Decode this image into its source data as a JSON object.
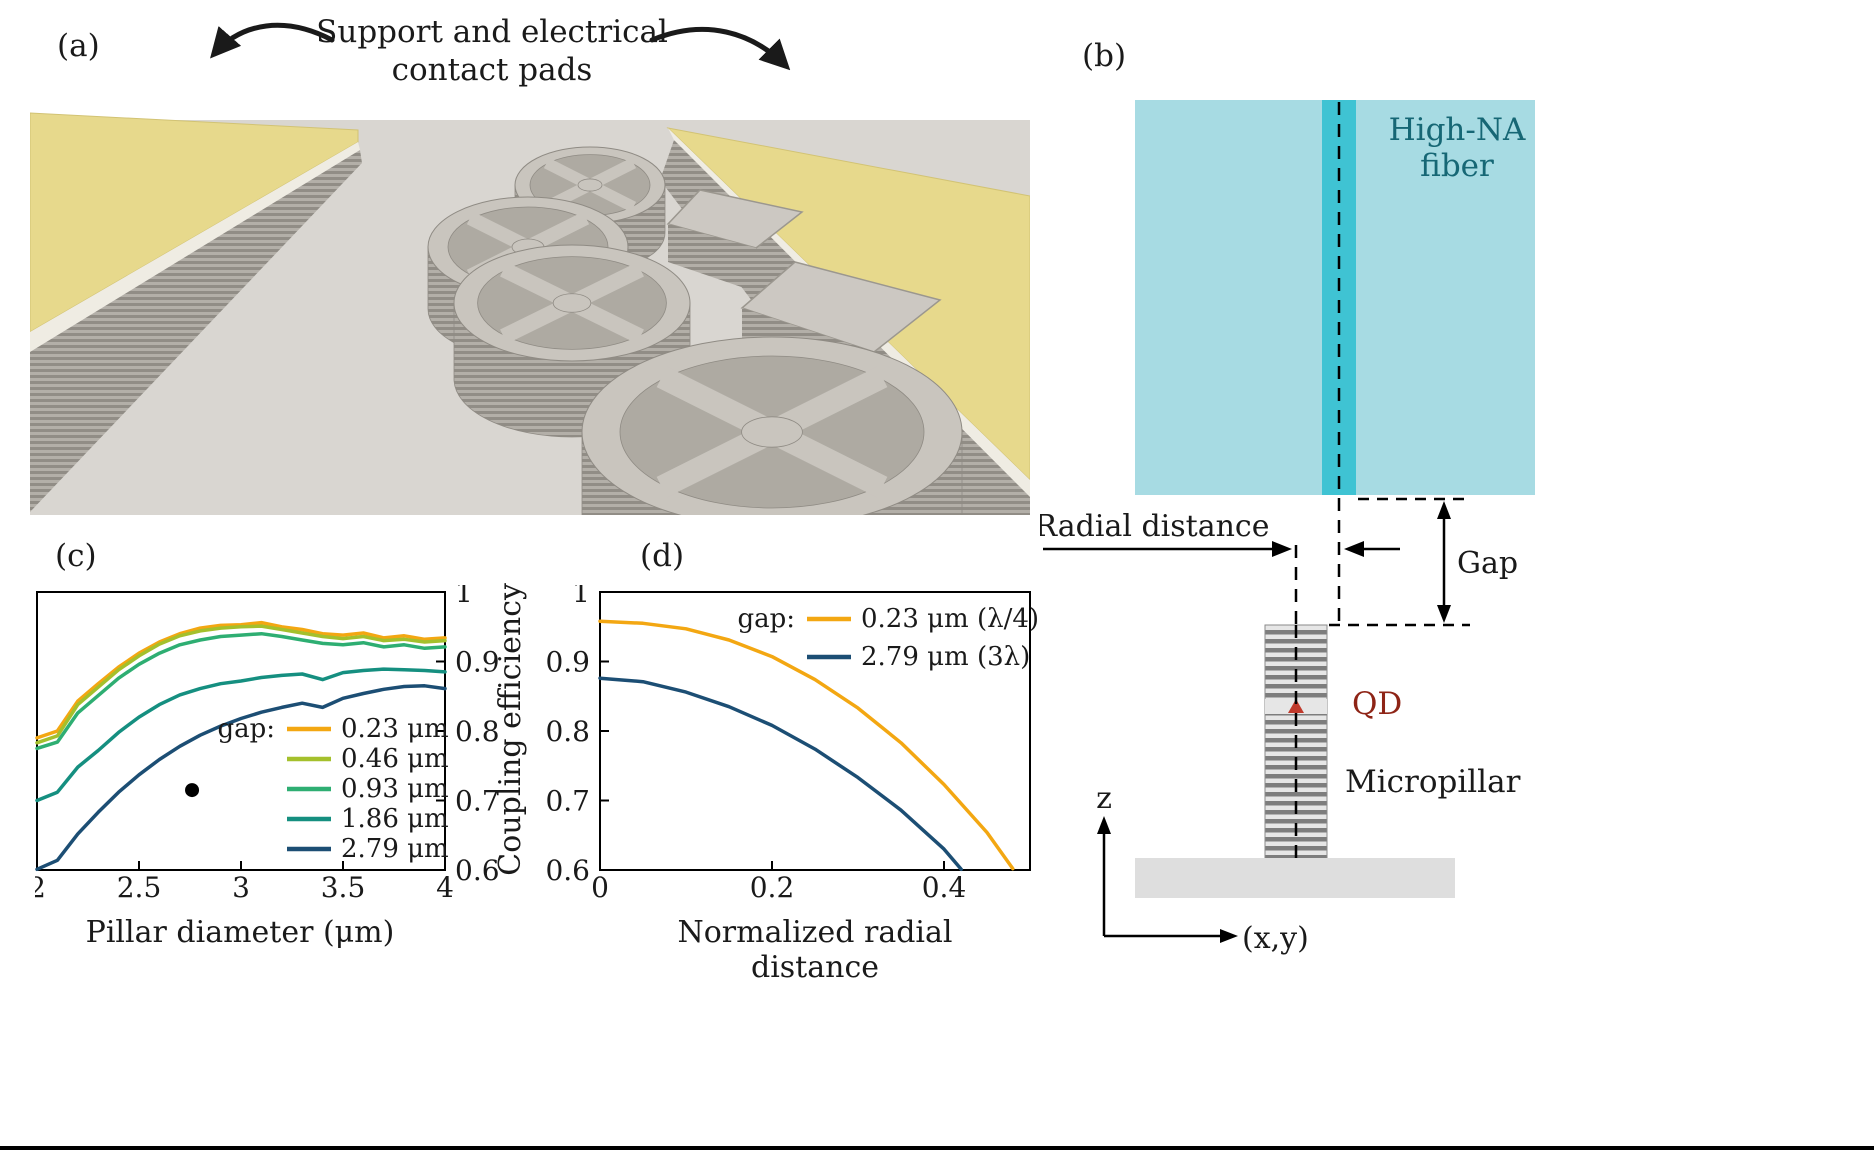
{
  "panels": {
    "a": {
      "label": "(a)",
      "caption_lines": [
        "Support and electrical",
        "contact pads"
      ],
      "colors": {
        "pad_yellow": "#e7d98c",
        "structure_gray": "#c9c5be",
        "floor_gray": "#d9d6d1"
      }
    },
    "b": {
      "label": "(b)",
      "fiber_label_lines": [
        "High-NA",
        "fiber"
      ],
      "radial_distance_label": "Radial distance",
      "gap_label": "Gap",
      "qd_label": "QD",
      "micropillar_label": "Micropillar",
      "axis_z_label": "z",
      "axis_xy_label": "(x,y)",
      "colors": {
        "fiber_cladding": "#a7dbe3",
        "fiber_core": "#3fc3d3",
        "fiber_text": "#166775",
        "qd_red": "#c0392b",
        "qd_text": "#8e2416",
        "substrate_gray": "#dedede"
      }
    },
    "c": {
      "label": "(c)"
    },
    "d": {
      "label": "(d)"
    }
  },
  "chart_data": [
    {
      "panel": "c",
      "type": "line",
      "title": "",
      "xlabel": "Pillar diameter (μm)",
      "ylabel": "Coupling efficiency",
      "xlim": [
        2,
        4
      ],
      "ylim": [
        0.6,
        1
      ],
      "xticks": [
        2,
        2.5,
        3,
        3.5,
        4
      ],
      "xtick_labels": [
        "2",
        "2.5",
        "3",
        "3.5",
        "4"
      ],
      "yticks": [
        1,
        0.9,
        0.8,
        0.7,
        0.6
      ],
      "ytick_labels": [
        "1",
        "0.9",
        "0.8",
        "0.7",
        "0.6"
      ],
      "legend_title": "gap:",
      "legend_position": "inside-right-bottom",
      "grid": false,
      "marker": {
        "x": 2.76,
        "y": 0.715,
        "color": "#000000"
      },
      "series": [
        {
          "name": "0.23 μm",
          "color": "#f3a712",
          "x": [
            2.0,
            2.1,
            2.2,
            2.3,
            2.4,
            2.5,
            2.6,
            2.7,
            2.8,
            2.9,
            3.0,
            3.1,
            3.2,
            3.3,
            3.4,
            3.5,
            3.6,
            3.7,
            3.8,
            3.9,
            4.0
          ],
          "y": [
            0.79,
            0.8,
            0.843,
            0.868,
            0.892,
            0.912,
            0.928,
            0.94,
            0.948,
            0.952,
            0.953,
            0.956,
            0.95,
            0.946,
            0.94,
            0.938,
            0.941,
            0.934,
            0.937,
            0.932,
            0.934
          ]
        },
        {
          "name": "0.46 μm",
          "color": "#a4c02c",
          "x": [
            2.0,
            2.1,
            2.2,
            2.3,
            2.4,
            2.5,
            2.6,
            2.7,
            2.8,
            2.9,
            3.0,
            3.1,
            3.2,
            3.3,
            3.4,
            3.5,
            3.6,
            3.7,
            3.8,
            3.9,
            4.0
          ],
          "y": [
            0.783,
            0.793,
            0.838,
            0.863,
            0.888,
            0.908,
            0.925,
            0.937,
            0.944,
            0.948,
            0.95,
            0.951,
            0.946,
            0.941,
            0.936,
            0.933,
            0.936,
            0.93,
            0.932,
            0.928,
            0.93
          ]
        },
        {
          "name": "0.93 μm",
          "color": "#2eae72",
          "x": [
            2.0,
            2.1,
            2.2,
            2.3,
            2.4,
            2.5,
            2.6,
            2.7,
            2.8,
            2.9,
            3.0,
            3.1,
            3.2,
            3.3,
            3.4,
            3.5,
            3.6,
            3.7,
            3.8,
            3.9,
            4.0
          ],
          "y": [
            0.775,
            0.784,
            0.826,
            0.851,
            0.876,
            0.896,
            0.912,
            0.924,
            0.931,
            0.936,
            0.938,
            0.94,
            0.936,
            0.931,
            0.926,
            0.924,
            0.927,
            0.921,
            0.924,
            0.919,
            0.921
          ]
        },
        {
          "name": "1.86 μm",
          "color": "#158f80",
          "x": [
            2.0,
            2.1,
            2.2,
            2.3,
            2.4,
            2.5,
            2.6,
            2.7,
            2.8,
            2.9,
            3.0,
            3.1,
            3.2,
            3.3,
            3.4,
            3.5,
            3.6,
            3.7,
            3.8,
            3.9,
            4.0
          ],
          "y": [
            0.7,
            0.712,
            0.748,
            0.772,
            0.798,
            0.82,
            0.838,
            0.852,
            0.861,
            0.868,
            0.872,
            0.877,
            0.88,
            0.882,
            0.874,
            0.884,
            0.887,
            0.889,
            0.888,
            0.887,
            0.885
          ]
        },
        {
          "name": "2.79 μm",
          "color": "#1c4e74",
          "x": [
            2.0,
            2.1,
            2.2,
            2.3,
            2.4,
            2.5,
            2.6,
            2.7,
            2.8,
            2.9,
            3.0,
            3.1,
            3.2,
            3.3,
            3.4,
            3.5,
            3.6,
            3.7,
            3.8,
            3.9,
            4.0
          ],
          "y": [
            0.601,
            0.614,
            0.652,
            0.683,
            0.712,
            0.737,
            0.759,
            0.778,
            0.794,
            0.807,
            0.818,
            0.827,
            0.834,
            0.84,
            0.834,
            0.847,
            0.854,
            0.86,
            0.864,
            0.865,
            0.861
          ]
        }
      ]
    },
    {
      "panel": "d",
      "type": "line",
      "title": "",
      "xlabel": "Normalized radial distance",
      "ylabel": "Coupling efficiency",
      "xlim": [
        0,
        0.5
      ],
      "ylim": [
        0.6,
        1
      ],
      "xticks": [
        0,
        0.2,
        0.4
      ],
      "xtick_labels": [
        "0",
        "0.2",
        "0.4"
      ],
      "yticks": [
        1,
        0.9,
        0.8,
        0.7,
        0.6
      ],
      "ytick_labels": [
        "1",
        "0.9",
        "0.8",
        "0.7",
        "0.6"
      ],
      "legend_title": "gap:",
      "legend_position": "inside-top-right",
      "grid": false,
      "series": [
        {
          "name": "0.23 μm (λ/4)",
          "color": "#f3a712",
          "x": [
            0,
            0.05,
            0.1,
            0.15,
            0.2,
            0.25,
            0.3,
            0.35,
            0.4,
            0.45,
            0.48
          ],
          "y": [
            0.958,
            0.955,
            0.947,
            0.931,
            0.907,
            0.874,
            0.833,
            0.783,
            0.723,
            0.654,
            0.602
          ]
        },
        {
          "name": "2.79 μm (3λ)",
          "color": "#1c4e74",
          "x": [
            0,
            0.05,
            0.1,
            0.15,
            0.2,
            0.25,
            0.3,
            0.35,
            0.4,
            0.42
          ],
          "y": [
            0.876,
            0.871,
            0.856,
            0.835,
            0.808,
            0.774,
            0.733,
            0.686,
            0.63,
            0.601
          ]
        }
      ]
    }
  ]
}
